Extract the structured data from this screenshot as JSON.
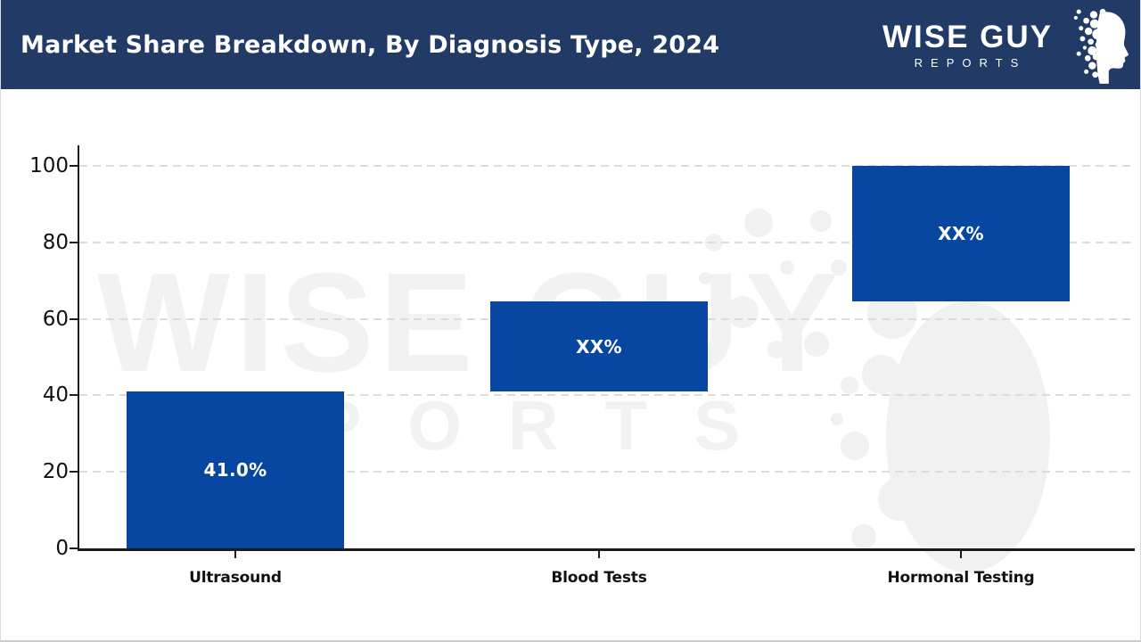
{
  "header": {
    "title": "Market Share Breakdown, By Diagnosis Type, 2024",
    "logo": {
      "line1": "WISE GUY",
      "line2": "REPORTS"
    }
  },
  "watermark": {
    "line1": "WISE GUY",
    "line2": "REPORTS"
  },
  "chart_data": {
    "type": "bar",
    "subtype": "waterfall-floating-bars",
    "title": "Market Share Breakdown, By Diagnosis Type, 2024",
    "categories": [
      "Ultrasound",
      "Blood Tests",
      "Hormonal Testing"
    ],
    "segments": [
      {
        "category": "Ultrasound",
        "start": 0,
        "end": 41,
        "label": "41.0%"
      },
      {
        "category": "Blood Tests",
        "start": 41,
        "end": 64.5,
        "label": "XX%"
      },
      {
        "category": "Hormonal Testing",
        "start": 64.5,
        "end": 100,
        "label": "XX%"
      }
    ],
    "yticks": [
      0,
      20,
      40,
      60,
      80,
      100
    ],
    "ylim": [
      0,
      105
    ],
    "xlabel": "",
    "ylabel": "",
    "grid": "horizontal-dashed",
    "legend": "none",
    "bar_color": "#0847a1",
    "bar_label_color": "#ffffff"
  },
  "colors": {
    "header_bg": "#213a66",
    "bar": "#0847a1",
    "gridline": "#dcdcdc",
    "axis": "#1a1a1a",
    "watermark": "#f2f2f2",
    "page_bg": "#ffffff"
  }
}
